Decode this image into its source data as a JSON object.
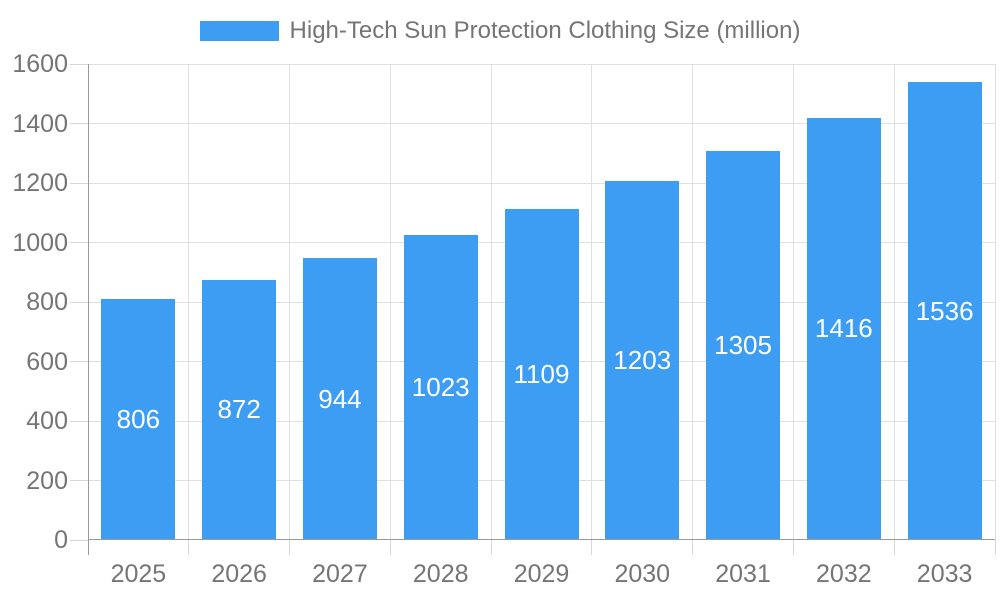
{
  "chart_data": {
    "type": "bar",
    "title": "High-Tech Sun Protection Clothing Size (million)",
    "series_name": "High-Tech Sun Protection Clothing Size (million)",
    "categories": [
      "2025",
      "2026",
      "2027",
      "2028",
      "2029",
      "2030",
      "2031",
      "2032",
      "2033"
    ],
    "values": [
      806,
      872,
      944,
      1023,
      1109,
      1203,
      1305,
      1416,
      1536
    ],
    "bar_value_labels": [
      "806",
      "872",
      "944",
      "1023",
      "1109",
      "1203",
      "1305",
      "1416",
      "1536"
    ],
    "xlabel": "",
    "ylabel": "",
    "ylim": [
      0,
      1600
    ],
    "yticks": [
      0,
      200,
      400,
      600,
      800,
      1000,
      1200,
      1400,
      1600
    ],
    "grid": true,
    "legend_position": "top-center",
    "value_label_position": "inside-center",
    "colors": {
      "bar": "#3C9DF3",
      "grid": "#E0E0E0",
      "axis": "#999999",
      "tick_label": "#757575",
      "legend_text": "#757575",
      "bar_label": "#FFFFFF",
      "background": "#FFFFFF"
    }
  }
}
